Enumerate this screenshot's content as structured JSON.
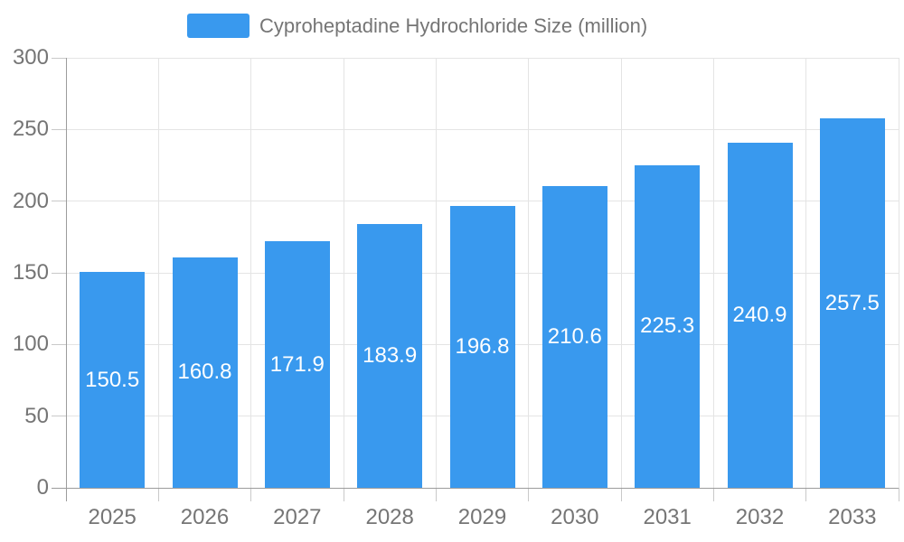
{
  "legend": {
    "label": "Cyproheptadine Hydrochloride Size (million)"
  },
  "colors": {
    "bar": "#3999ee",
    "axis_text": "#757575",
    "value_label_text": "#ffffff",
    "grid_line": "#e4e4e4",
    "axis_line": "#9c9c9c",
    "tick_line": "#c9c9c9",
    "background": "#ffffff"
  },
  "chart_data": {
    "type": "bar",
    "title": "Cyproheptadine Hydrochloride Size (million)",
    "categories": [
      "2025",
      "2026",
      "2027",
      "2028",
      "2029",
      "2030",
      "2031",
      "2032",
      "2033"
    ],
    "values": [
      150.5,
      160.8,
      171.9,
      183.9,
      196.8,
      210.6,
      225.3,
      240.9,
      257.5
    ],
    "series": [
      {
        "name": "Cyproheptadine Hydrochloride Size (million)",
        "values": [
          150.5,
          160.8,
          171.9,
          183.9,
          196.8,
          210.6,
          225.3,
          240.9,
          257.5
        ]
      }
    ],
    "xlabel": "",
    "ylabel": "",
    "ylim": [
      0,
      300
    ],
    "yticks": [
      0,
      50,
      100,
      150,
      200,
      250,
      300
    ],
    "grid": true,
    "legend_position": "top",
    "value_labels": "inside-center"
  }
}
